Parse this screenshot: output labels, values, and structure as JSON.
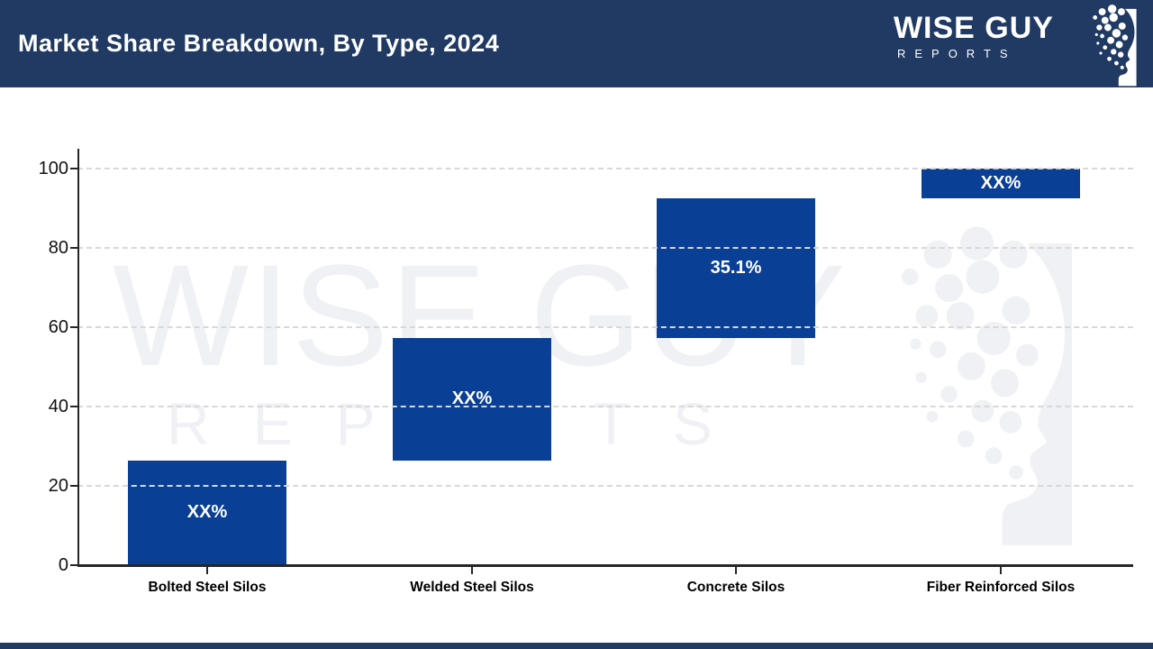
{
  "header": {
    "title": "Market Share Breakdown, By Type, 2024",
    "logo": {
      "line1": "WISE GUY",
      "line2": "REPORTS"
    }
  },
  "watermark": {
    "line1": "WISE GUY",
    "line2": "REPORTS"
  },
  "colors": {
    "header_bg": "#213a63",
    "bar": "#0a3f96",
    "grid": "#d8d8d8",
    "axis": "#262626",
    "watermark": "#f0f1f4"
  },
  "chart_data": {
    "type": "bar",
    "subtype": "waterfall",
    "title": "Market Share Breakdown, By Type, 2024",
    "categories": [
      "Bolted Steel Silos",
      "Welded Steel Silos",
      "Concrete Silos",
      "Fiber Reinforced Silos"
    ],
    "segments": [
      {
        "category": "Bolted Steel Silos",
        "start": 0,
        "end": 26.4,
        "label": "XX%"
      },
      {
        "category": "Welded Steel Silos",
        "start": 26.4,
        "end": 57.3,
        "label": "XX%"
      },
      {
        "category": "Concrete Silos",
        "start": 57.3,
        "end": 92.4,
        "label": "35.1%",
        "value": 35.1
      },
      {
        "category": "Fiber Reinforced Silos",
        "start": 92.4,
        "end": 100,
        "label": "XX%"
      }
    ],
    "yticks": [
      0,
      20,
      40,
      60,
      80,
      100
    ],
    "ylim": [
      0,
      105
    ],
    "grid": "horizontal-dashed",
    "legend": "none",
    "xlabel": "",
    "ylabel": ""
  }
}
